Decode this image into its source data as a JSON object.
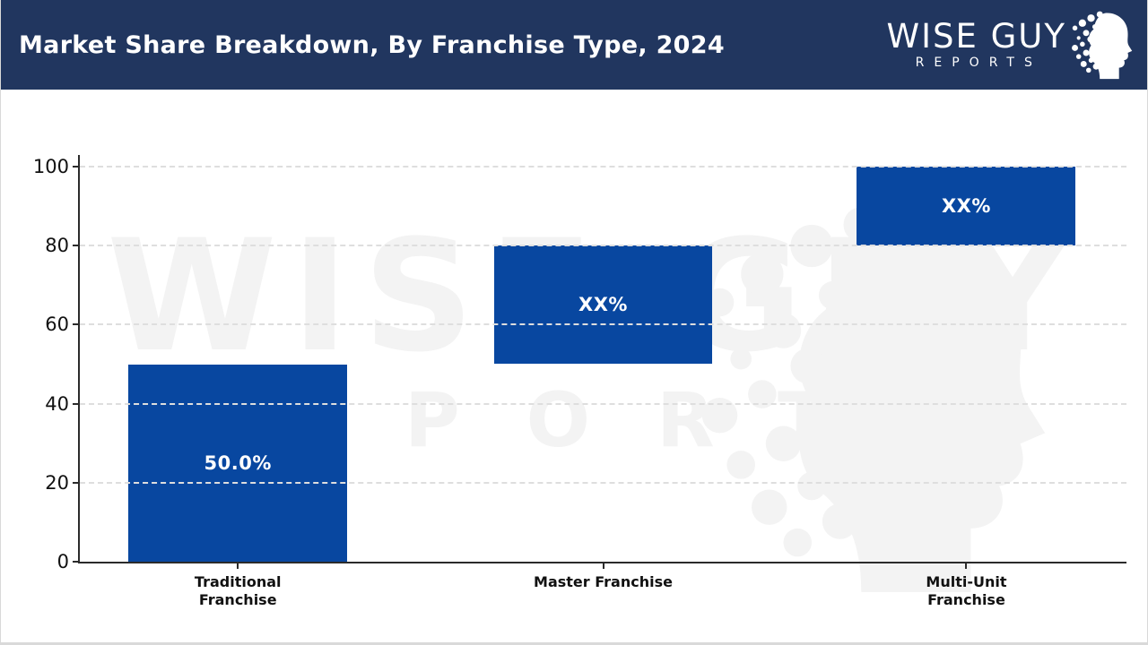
{
  "header": {
    "title": "Market Share Breakdown, By Franchise Type, 2024",
    "bg_color": "#21365F",
    "logo": {
      "line1": "WISE GUY",
      "line2": "REPORTS"
    }
  },
  "watermark": {
    "line1": "WISE GUY",
    "line2": "REPORTS"
  },
  "chart_data": {
    "type": "bar",
    "variant": "waterfall",
    "title": "Market Share Breakdown, By Franchise Type, 2024",
    "categories": [
      {
        "lines": [
          "Traditional",
          "Franchise"
        ]
      },
      {
        "lines": [
          "Master Franchise"
        ]
      },
      {
        "lines": [
          "Multi-Unit",
          "Franchise"
        ]
      }
    ],
    "segments": [
      {
        "category": "Traditional Franchise",
        "start": 0,
        "end": 50,
        "label": "50.0%"
      },
      {
        "category": "Master Franchise",
        "start": 50,
        "end": 80,
        "label": "XX%"
      },
      {
        "category": "Multi-Unit Franchise",
        "start": 80,
        "end": 100,
        "label": "XX%"
      }
    ],
    "ylim": [
      0,
      100
    ],
    "yticks": [
      0,
      20,
      40,
      60,
      80,
      100
    ],
    "xlabel": "",
    "ylabel": "",
    "grid": {
      "axis": "y",
      "style": "dashed",
      "color": "#dedede"
    },
    "legend": "none",
    "bar_color": "#0847A0",
    "bar_label_color": "#ffffff",
    "axis_color": "#2b2b2b",
    "tick_label_color": "#111111"
  }
}
